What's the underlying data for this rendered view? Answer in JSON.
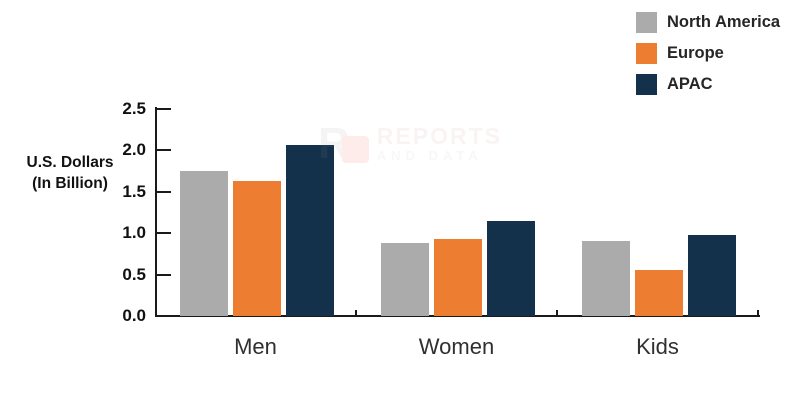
{
  "chart_data": {
    "type": "bar",
    "title": "",
    "categories": [
      "Men",
      "Women",
      "Kids"
    ],
    "series": [
      {
        "name": "North America",
        "color": "#ABABAB",
        "values": [
          1.75,
          0.88,
          0.9
        ]
      },
      {
        "name": "Europe",
        "color": "#ED7D31",
        "values": [
          1.63,
          0.93,
          0.55
        ]
      },
      {
        "name": "APAC",
        "color": "#14314C",
        "values": [
          2.06,
          1.15,
          0.97
        ]
      }
    ],
    "ylabel_line1": "U.S. Dollars",
    "ylabel_line2": "(In Billion)",
    "xlabel": "",
    "ylim": [
      0,
      2.5
    ],
    "ytick_step": 0.5,
    "yticks": [
      "0.0",
      "0.5",
      "1.0",
      "1.5",
      "2.0",
      "2.5"
    ],
    "grid": false,
    "legend_position": "top-right"
  },
  "watermark": {
    "logo_letter": "R",
    "line1": "REPORTS",
    "line2": "AND DATA"
  },
  "colors": {
    "axis": "#1a1a1a",
    "category_label": "#303030",
    "legend_text": "#262626"
  }
}
